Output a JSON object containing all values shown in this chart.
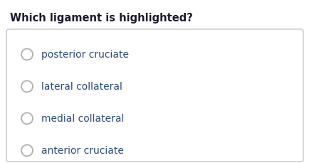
{
  "title": "Which ligament is highlighted?",
  "title_fontsize": 10.5,
  "title_color": "#1a1a2e",
  "title_bold": true,
  "options": [
    "posterior cruciate",
    "lateral collateral",
    "medial collateral",
    "anterior cruciate"
  ],
  "option_fontsize": 10,
  "option_color": "#2e4a7a",
  "background_color": "#ffffff",
  "box_facecolor": "#ffffff",
  "box_edgecolor": "#c8c8c8",
  "radio_edge_color": "#b0b0b0",
  "radio_face_color": "#ffffff",
  "fig_width": 4.35,
  "fig_height": 2.3
}
